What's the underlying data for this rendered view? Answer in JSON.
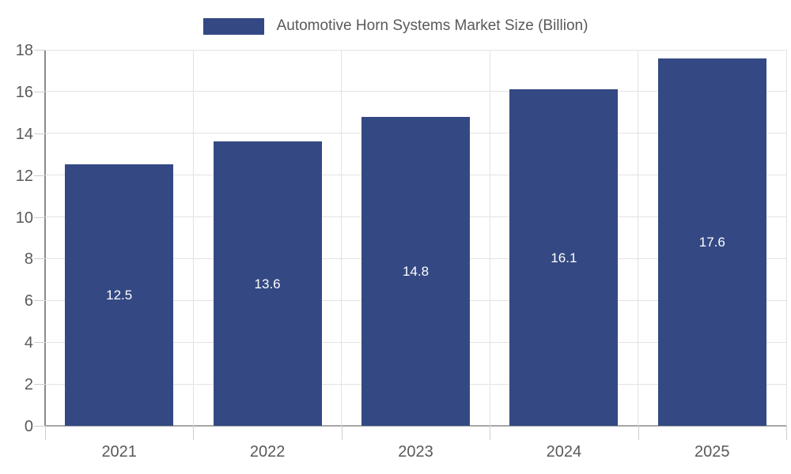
{
  "chart_data": {
    "type": "bar",
    "title": "Automotive Horn Systems Market Size (Billion)",
    "legend_label": "Automotive Horn Systems Market Size (Billion)",
    "legend_position": "top-center",
    "categories": [
      "2021",
      "2022",
      "2023",
      "2024",
      "2025"
    ],
    "values": [
      12.5,
      13.6,
      14.8,
      16.1,
      17.6
    ],
    "value_label_decimals": 1,
    "xlabel": "",
    "ylabel": "",
    "ylim": [
      0,
      18
    ],
    "ytick_step": 2,
    "grid": true
  },
  "colors": {
    "bar_fill": "#344983",
    "value_label": "#ffffff",
    "axis_text": "#595959",
    "gridline": "#e3e3e3",
    "tick": "#cfcfcf",
    "spine_left": "#8a8a8a",
    "spine_bottom": "#a6a6a6",
    "background": "#ffffff"
  }
}
